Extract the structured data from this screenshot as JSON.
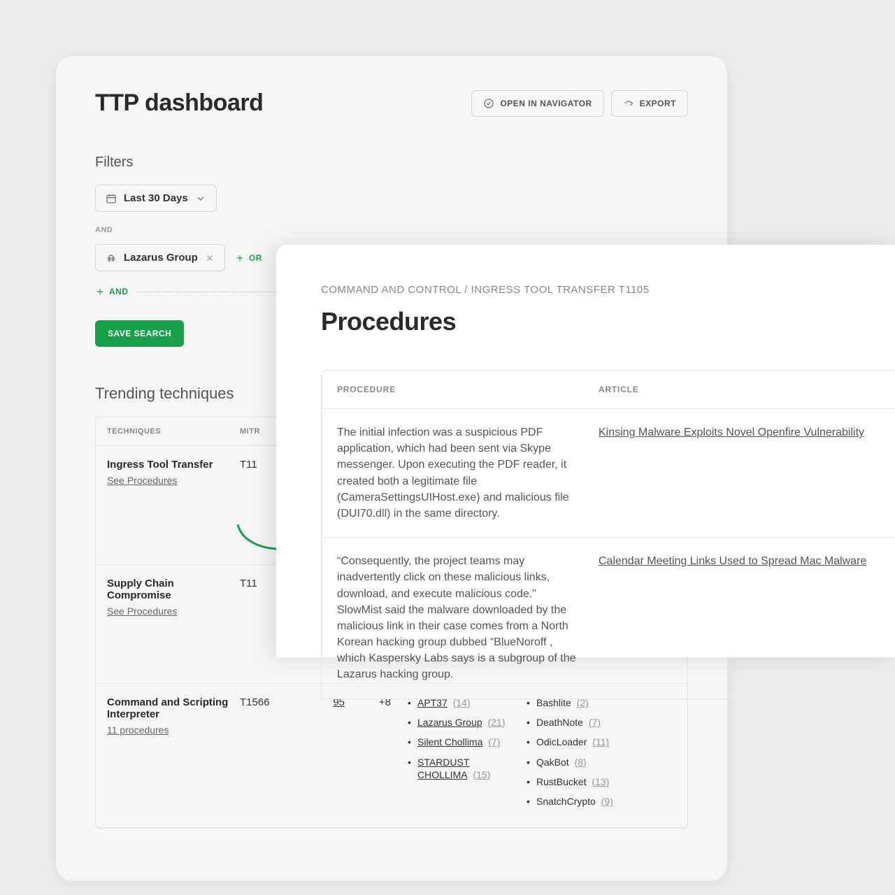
{
  "header": {
    "title": "TTP dashboard",
    "open_nav": "OPEN IN NAVIGATOR",
    "export": "EXPORT"
  },
  "filters": {
    "label": "Filters",
    "date_range": "Last 30 Days",
    "and_label": "AND",
    "group": "Lazarus Group",
    "or_label": "OR",
    "add_and": "AND",
    "save": "SAVE SEARCH"
  },
  "trending": {
    "title": "Trending techniques",
    "cols": {
      "tech": "TECHNIQUES",
      "mitr": "MITR"
    },
    "rows": [
      {
        "name": "Ingress Tool Transfer",
        "sub": "See Procedures",
        "mitre": "T11"
      },
      {
        "name": "Supply Chain Compromise",
        "sub": "See Procedures",
        "mitre": "T11"
      },
      {
        "name": "Command and Scripting Interpreter",
        "sub": "11 procedures",
        "mitre": "T1566",
        "count": "95",
        "plus": "+8",
        "list1": [
          {
            "lnk": "APT37",
            "cnt": "(14)"
          },
          {
            "lnk": "Lazarus Group",
            "cnt": "(21)"
          },
          {
            "lnk": "Silent Chollima",
            "cnt": "(7)"
          },
          {
            "lnk": "STARDUST CHOLLIMA",
            "cnt": "(15)"
          }
        ],
        "list2": [
          {
            "txt": "Bashlite",
            "cnt": "(2)"
          },
          {
            "txt": "DeathNote",
            "cnt": "(7)"
          },
          {
            "txt": "OdicLoader",
            "cnt": "(11)"
          },
          {
            "txt": "QakBot",
            "cnt": "(8)"
          },
          {
            "txt": "RustBucket",
            "cnt": "(13)"
          },
          {
            "txt": "SnatchCrypto",
            "cnt": "(9)"
          }
        ]
      }
    ]
  },
  "overlay": {
    "breadcrumb": "COMMAND AND CONTROL / INGRESS TOOL TRANSFER T1105",
    "title": "Procedures",
    "cols": {
      "proc": "PROCEDURE",
      "art": "ARTICLE"
    },
    "rows": [
      {
        "proc": "The initial infection was a suspicious PDF application, which had been sent via Skype messenger. Upon executing the PDF reader, it created both a legitimate file (CameraSettingsUIHost.exe) and malicious file (DUI70.dll) in the same directory.",
        "art": "Kinsing Malware Exploits Novel Openfire Vulnerability"
      },
      {
        "proc": "“Consequently, the project teams may inadvertently click on these malicious links, download, and execute malicious code.” SlowMist said the malware downloaded by the malicious link in their case comes from a North Korean hacking group dubbed “BlueNoroff , which Kaspersky Labs says is a subgroup of the Lazarus hacking group.",
        "art": "Calendar Meeting Links Used to Spread Mac Malware"
      }
    ]
  },
  "colors": {
    "green": "#18a048",
    "bg": "#ececec",
    "card": "#f5f5f5",
    "text": "#2a2a2a",
    "muted": "#888"
  }
}
